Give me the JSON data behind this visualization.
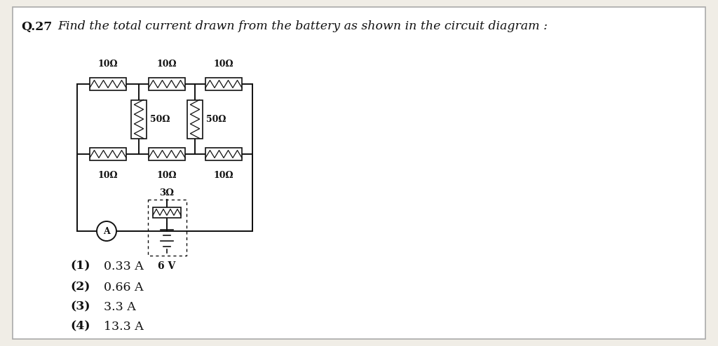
{
  "title_q": "Q.27",
  "title_text": "Find the total current drawn from the battery as shown in the circuit diagram :",
  "options": [
    [
      "(1)",
      "0.33 A"
    ],
    [
      "(2)",
      "0.66 A"
    ],
    [
      "(3)",
      "3.3 A"
    ],
    [
      "(4)",
      "13.3 A"
    ]
  ],
  "bg_color": "#f0ede6",
  "border_color": "#999999",
  "text_color": "#111111",
  "title_fontsize": 12.5,
  "option_fontsize": 12.5,
  "res_labels_top": [
    "10Ω",
    "10Ω",
    "10Ω"
  ],
  "res_labels_mid": [
    "50Ω",
    "50Ω"
  ],
  "res_labels_bot": [
    "10Ω",
    "10Ω",
    "10Ω"
  ],
  "series_res": "3Ω",
  "battery_label": "6 V"
}
